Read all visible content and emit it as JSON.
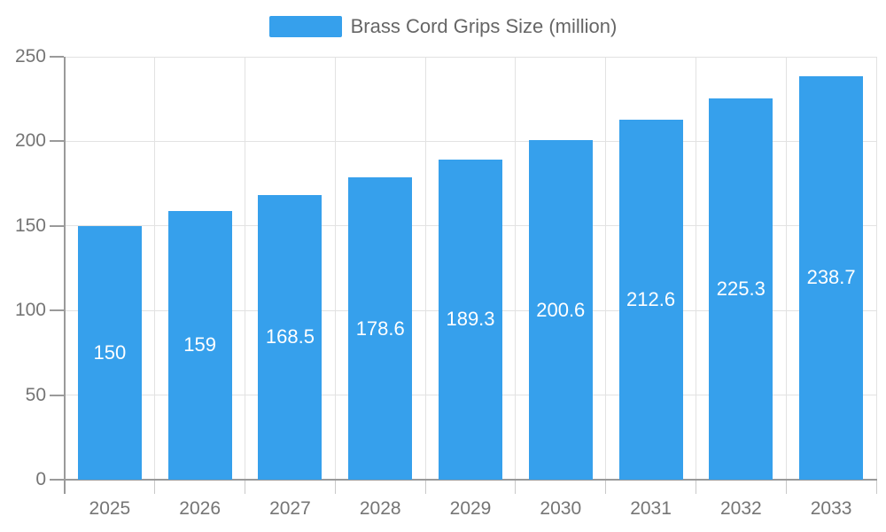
{
  "legend": {
    "label": "Brass Cord Grips Size (million)",
    "swatch_color": "#36A0EC"
  },
  "chart_data": {
    "type": "bar",
    "title": "Brass Cord Grips Size (million)",
    "categories": [
      "2025",
      "2026",
      "2027",
      "2028",
      "2029",
      "2030",
      "2031",
      "2032",
      "2033"
    ],
    "values": [
      150,
      159,
      168.5,
      178.6,
      189.3,
      200.6,
      212.6,
      225.3,
      238.7
    ],
    "value_labels": [
      "150",
      "159",
      "168.5",
      "178.6",
      "189.3",
      "200.6",
      "212.6",
      "225.3",
      "238.7"
    ],
    "xlabel": "",
    "ylabel": "",
    "ylim": [
      0,
      250
    ],
    "y_ticks": [
      0,
      50,
      100,
      150,
      200,
      250
    ],
    "grid": true,
    "legend_position": "top",
    "bar_color": "#36A0EC",
    "bar_label_color": "#ffffff",
    "axis_text_color": "#757575",
    "grid_color": "#E2E2E2",
    "axis_line_color": "#9A9A9A"
  }
}
